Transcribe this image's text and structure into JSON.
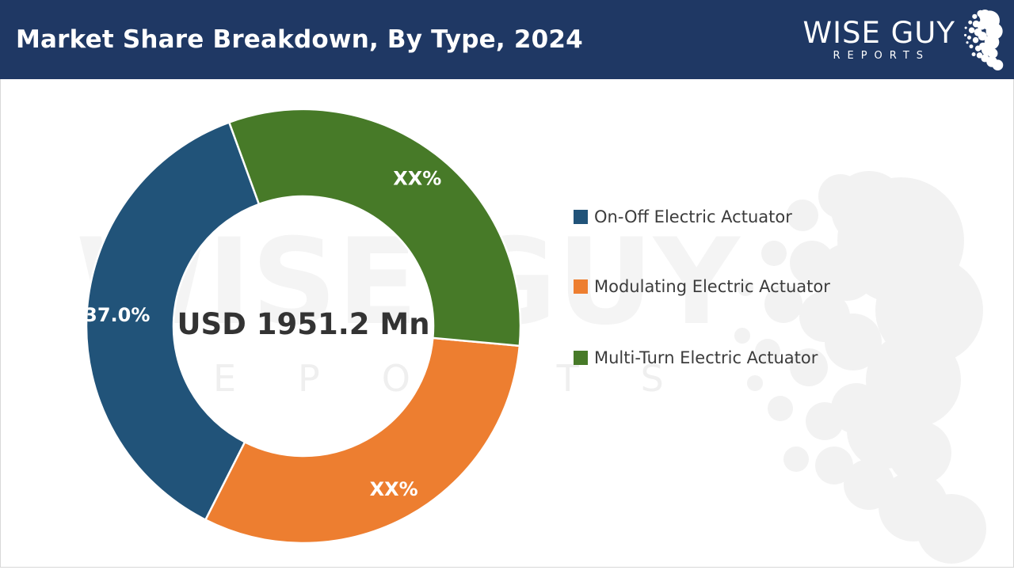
{
  "header": {
    "title": "Market Share Breakdown, By Type, 2024",
    "logo": {
      "name": "WISE GUY",
      "subtitle": "REPORTS"
    }
  },
  "watermark": {
    "line1": "WISE GUY",
    "line2": "REPORTS"
  },
  "chart_data": {
    "type": "pie",
    "variant": "donut",
    "title": "Market Share Breakdown, By Type, 2024",
    "center_label": "USD 1951.2 Mn",
    "start_angle_deg": -20,
    "direction": "counterclockwise",
    "legend_position": "right",
    "donut_hole_ratio": 0.6,
    "segments": [
      {
        "id": "on-off",
        "label": "On-Off Electric Actuator",
        "value": 37.0,
        "display": "37.0%",
        "color": "#215379"
      },
      {
        "id": "modulating",
        "label": "Modulating Electric Actuator",
        "value": 31.0,
        "display": "XX%",
        "color": "#ed7e30"
      },
      {
        "id": "multi-turn",
        "label": "Multi-Turn Electric Actuator",
        "value": 32.0,
        "display": "XX%",
        "color": "#477a28"
      }
    ],
    "colors": {
      "header_bar": "#1f3864",
      "panel_border": "#d8d8d8",
      "label_text": "#ffffff",
      "center_text": "#333333"
    }
  }
}
